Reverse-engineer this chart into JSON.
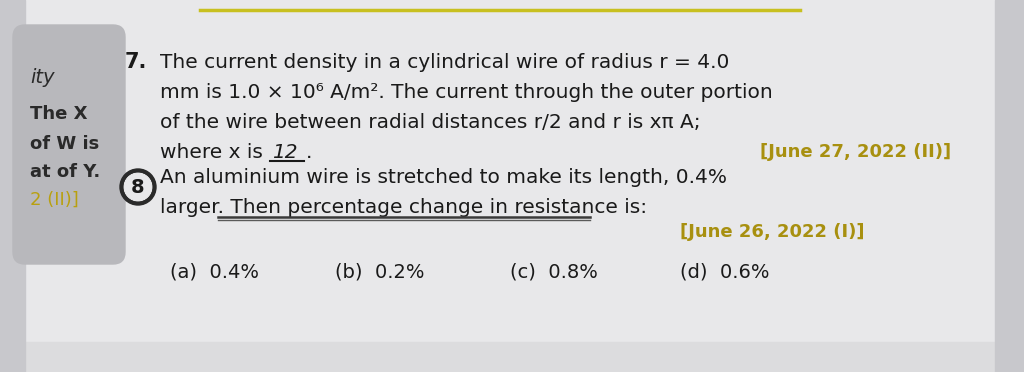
{
  "outer_bg": "#c8c8cc",
  "page_bg": "#dcdcde",
  "page_inner_bg": "#e8e8ea",
  "sidebar_box_color": "#b8b8bc",
  "q7_number": "7.",
  "q7_line1": "The current density in a cylindrical wire of radius r = 4.0",
  "q7_line2": "mm is 1.0 × 10⁶ A/m². The current through the outer portion",
  "q7_line3": "of the wire between radial distances r/2 and r is xπ A;",
  "q7_line4_prefix": "where x is ",
  "q7_answer": "12",
  "q7_ref": "[June 27, 2022 (II)]",
  "q8_line1": "An aluminium wire is stretched to make its length, 0.4%",
  "q8_line2": "larger. Then percentage change in resistance is:",
  "q8_underline_text": "Then percentage change in resistance",
  "q8_ref": "[June 26, 2022 (I)]",
  "options": [
    "(a)  0.4%",
    "(b)  0.2%",
    "(c)  0.8%",
    "(d)  0.6%"
  ],
  "left_text_lines": [
    "ity",
    "The X",
    "of W is",
    "at of Y.",
    "2 (II)]"
  ],
  "left_text_colors": [
    "#2a2a2a",
    "#2a2a2a",
    "#2a2a2a",
    "#2a2a2a",
    "#b8a010"
  ],
  "text_color": "#1a1a1a",
  "ref_color": "#a89010",
  "top_bar_color": "#c8c020",
  "font_size_main": 14.5,
  "font_size_options": 14.0,
  "font_size_ref": 13.0,
  "font_size_number": 15,
  "font_size_sidebar": 13
}
